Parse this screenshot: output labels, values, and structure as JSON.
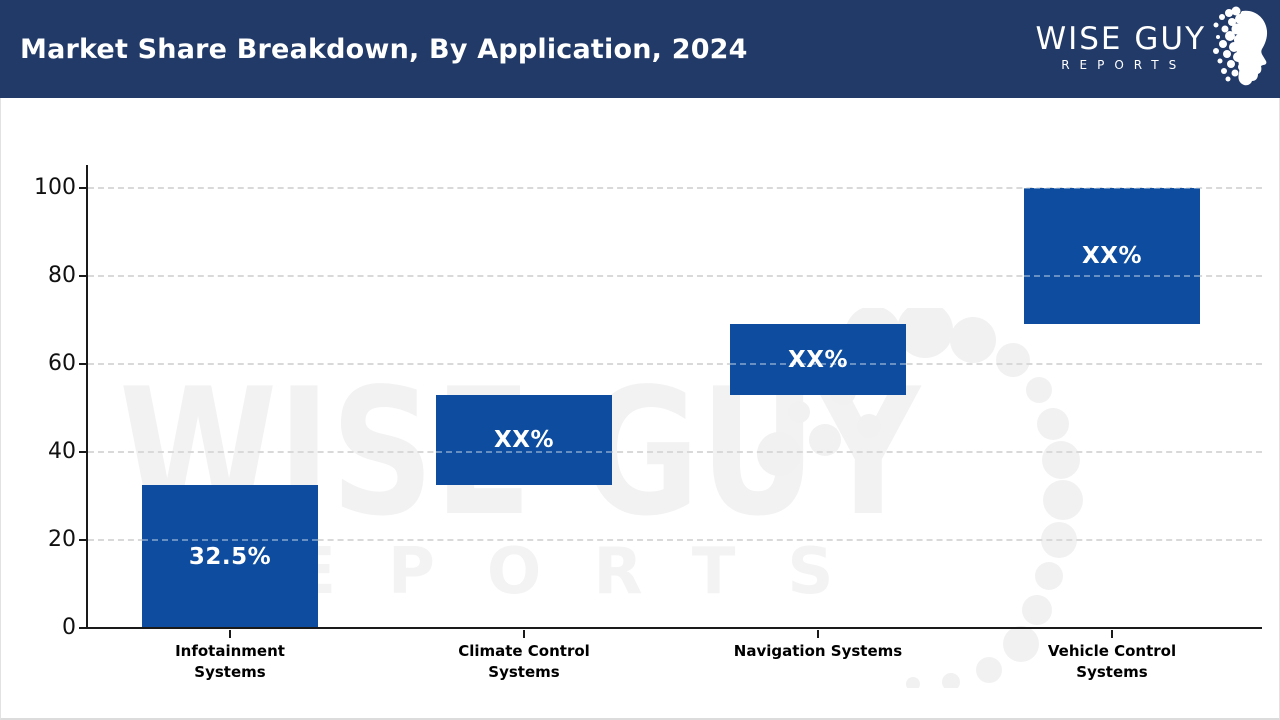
{
  "header": {
    "title": "Market Share Breakdown, By Application, 2024",
    "bg_color": "#223a68",
    "logo": {
      "name": "WISE GUY",
      "sub": "REPORTS"
    }
  },
  "watermark": {
    "line1": "WISE GUY",
    "line2": "REPORTS",
    "color": "#f2f2f2"
  },
  "chart_data": {
    "type": "bar",
    "subtype": "waterfall",
    "title": "Market Share Breakdown, By Application, 2024",
    "categories": [
      "Infotainment Systems",
      "Climate Control Systems",
      "Navigation Systems",
      "Vehicle Control Systems"
    ],
    "category_lines": [
      [
        "Infotainment",
        "Systems"
      ],
      [
        "Climate Control",
        "Systems"
      ],
      [
        "Navigation Systems"
      ],
      [
        "Vehicle Control",
        "Systems"
      ]
    ],
    "segments": [
      {
        "category": "Infotainment Systems",
        "start": 0,
        "end": 32.5,
        "value": 32.5,
        "label": "32.5%"
      },
      {
        "category": "Climate Control Systems",
        "start": 32.5,
        "end": 53,
        "value": 20.5,
        "label": "XX%"
      },
      {
        "category": "Navigation Systems",
        "start": 53,
        "end": 69,
        "value": 16,
        "label": "XX%"
      },
      {
        "category": "Vehicle Control Systems",
        "start": 69,
        "end": 100,
        "value": 31,
        "label": "XX%"
      }
    ],
    "y_ticks": [
      0,
      20,
      40,
      60,
      80,
      100
    ],
    "ylim": [
      0,
      100
    ],
    "xlabel": "",
    "ylabel": "",
    "grid": "horizontal-dashed",
    "gridline_color": "#d9d9d9",
    "bar_color": "#0d4c9e",
    "bar_label_color": "#ffffff",
    "axis_color": "#1a1a1a",
    "legend": "none"
  }
}
